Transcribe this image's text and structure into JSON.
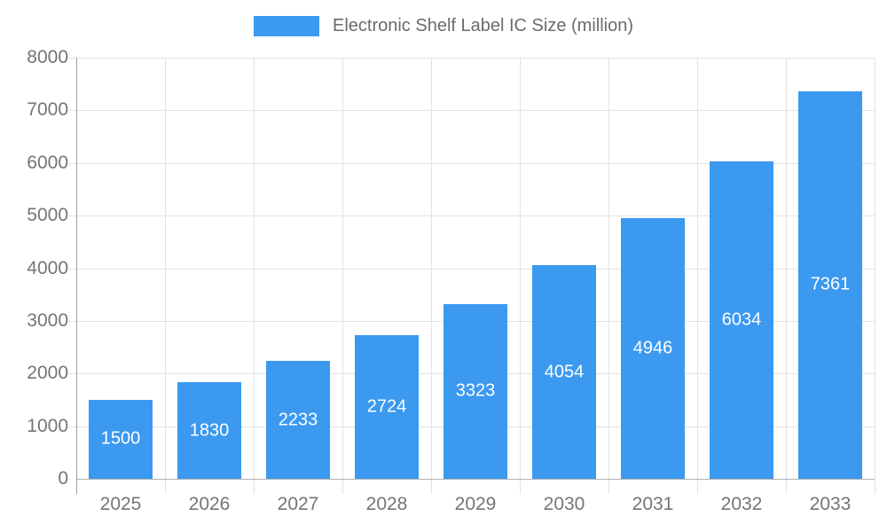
{
  "legend": {
    "label": "Electronic Shelf Label IC Size (million)"
  },
  "colors": {
    "bar": "#3B99F0",
    "grid": "#E3E3E3",
    "y_axis_line": "#9E9E9E",
    "x_axis_line": "#B0B0B0",
    "tick_text": "#757575",
    "legend_text": "#6B6B6B",
    "bar_label_text": "#FFFFFF",
    "background": "#FFFFFF"
  },
  "chart_data": {
    "type": "bar",
    "title": "Electronic Shelf Label IC Size (million)",
    "categories": [
      "2025",
      "2026",
      "2027",
      "2028",
      "2029",
      "2030",
      "2031",
      "2032",
      "2033"
    ],
    "values": [
      1500,
      1830,
      2233,
      2724,
      3323,
      4054,
      4946,
      6034,
      7361
    ],
    "series": [
      {
        "name": "Electronic Shelf Label IC Size (million)",
        "values": [
          1500,
          1830,
          2233,
          2724,
          3323,
          4054,
          4946,
          6034,
          7361
        ]
      }
    ],
    "xlabel": "",
    "ylabel": "",
    "ylim": [
      0,
      8000
    ],
    "ytick_step": 1000,
    "ytick_labels": [
      "0",
      "1000",
      "2000",
      "3000",
      "4000",
      "5000",
      "6000",
      "7000",
      "8000"
    ],
    "grid": "both",
    "legend_position": "top-center",
    "bar_labels_inside": true
  }
}
